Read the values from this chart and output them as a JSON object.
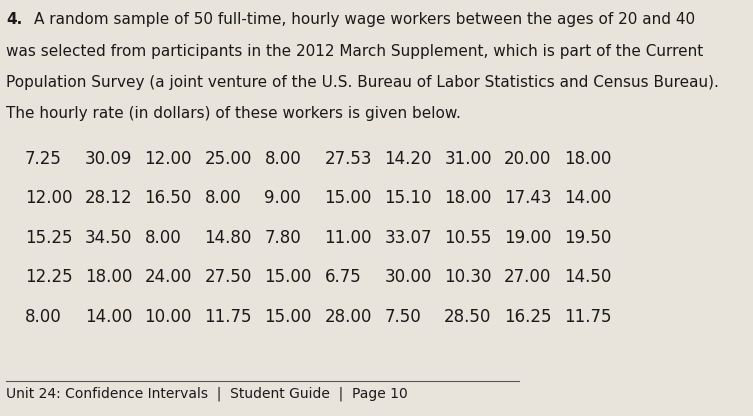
{
  "paragraph_lines": [
    "4.  A random sample of 50 full-time, hourly wage workers between the ages of 20 and 40",
    "was selected from participants in the 2012 March Supplement, which is part of the Current",
    "Population Survey (a joint venture of the U.S. Bureau of Labor Statistics and Census Bureau).",
    "The hourly rate (in dollars) of these workers is given below."
  ],
  "table": [
    [
      "7.25",
      "30.09",
      "12.00",
      "25.00",
      "8.00",
      "27.53",
      "14.20",
      "31.00",
      "20.00",
      "18.00"
    ],
    [
      "12.00",
      "28.12",
      "16.50",
      "8.00",
      "9.00",
      "15.00",
      "15.10",
      "18.00",
      "17.43",
      "14.00"
    ],
    [
      "15.25",
      "34.50",
      "8.00",
      "14.80",
      "7.80",
      "11.00",
      "33.07",
      "10.55",
      "19.00",
      "19.50"
    ],
    [
      "12.25",
      "18.00",
      "24.00",
      "27.50",
      "15.00",
      "6.75",
      "30.00",
      "10.30",
      "27.00",
      "14.50"
    ],
    [
      "8.00",
      "14.00",
      "10.00",
      "11.75",
      "15.00",
      "28.00",
      "7.50",
      "28.50",
      "16.25",
      "11.75"
    ]
  ],
  "footer": "Unit 24: Confidence Intervals  |  Student Guide  |  Page 10",
  "bg_color": "#e8e4dc",
  "text_color": "#1a1a1a",
  "font_size_body": 11,
  "font_size_table": 12,
  "font_size_footer": 10,
  "line_color": "#555555"
}
